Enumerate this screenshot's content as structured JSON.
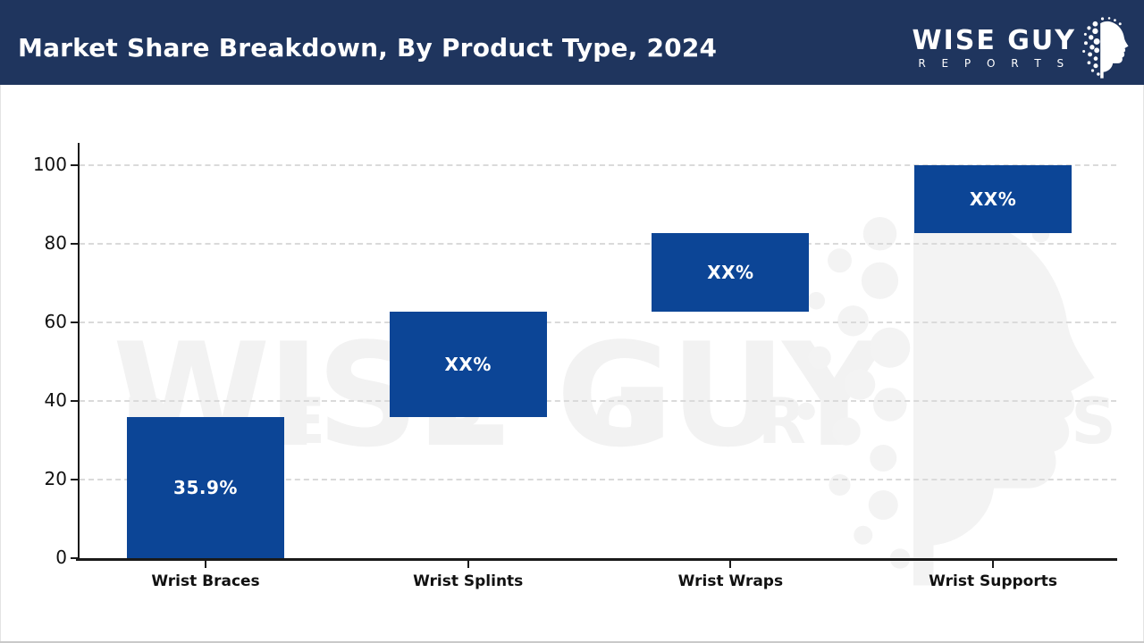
{
  "header": {
    "title": "Market Share Breakdown, By Product Type, 2024",
    "logo": {
      "line1": "WISE GUY",
      "line2": "R E P O R T S"
    }
  },
  "watermark": {
    "line1": "WISE GUY",
    "line2": "R E P O R T S"
  },
  "colors": {
    "header_bg": "#1F355E",
    "bar": "#0C4596",
    "grid": "#DADADA",
    "axis": "#1A1A1A",
    "watermark": "#F2F2F2",
    "title_text": "#FFFFFF",
    "bar_label": "#FFFFFF"
  },
  "chart_data": {
    "type": "bar",
    "subtype": "waterfall",
    "title": "Market Share Breakdown, By Product Type, 2024",
    "categories": [
      "Wrist Braces",
      "Wrist Splints",
      "Wrist Wraps",
      "Wrist Supports"
    ],
    "bars": [
      {
        "category": "Wrist Braces",
        "start": 0,
        "end": 35.9,
        "label": "35.9%"
      },
      {
        "category": "Wrist Splints",
        "start": 35.9,
        "end": 62.7,
        "label": "XX%"
      },
      {
        "category": "Wrist Wraps",
        "start": 62.7,
        "end": 82.8,
        "label": "XX%"
      },
      {
        "category": "Wrist Supports",
        "start": 82.8,
        "end": 100,
        "label": "XX%"
      }
    ],
    "ylim": [
      0,
      100
    ],
    "yticks": [
      0,
      20,
      40,
      60,
      80,
      100
    ],
    "xlabel": "",
    "ylabel": "",
    "grid": "horizontal-dashed",
    "legend": "none"
  }
}
